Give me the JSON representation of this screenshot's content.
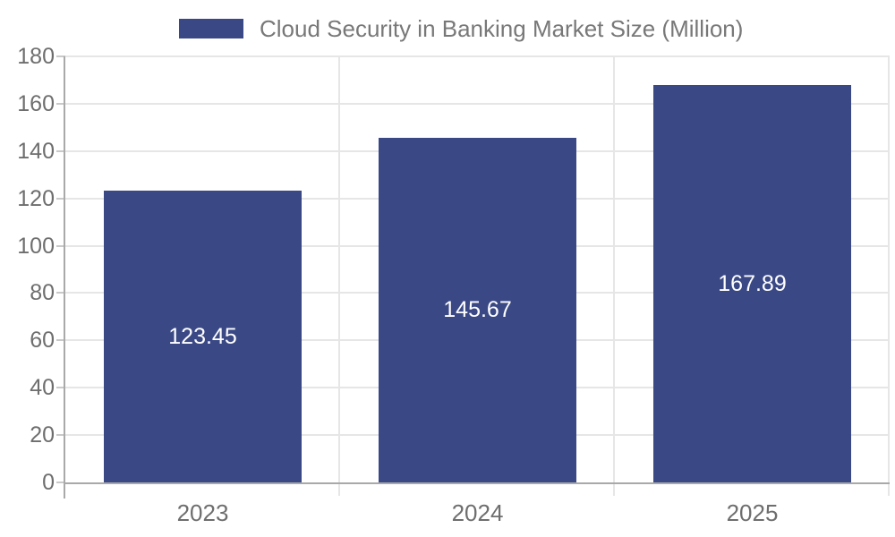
{
  "chart_data": {
    "type": "bar",
    "title": "Cloud Security in Banking Market Size (Million)",
    "legend": [
      "Cloud Security in Banking Market Size (Million)"
    ],
    "legend_position": "top",
    "categories": [
      "2023",
      "2024",
      "2025"
    ],
    "series": [
      {
        "name": "Cloud Security in Banking Market Size (Million)",
        "values": [
          123.45,
          145.67,
          167.89
        ]
      }
    ],
    "value_labels": [
      "123.45",
      "145.67",
      "167.89"
    ],
    "xlabel": "",
    "ylabel": "",
    "ylim": [
      0,
      180
    ],
    "yticks": [
      0,
      20,
      40,
      60,
      80,
      100,
      120,
      140,
      160,
      180
    ],
    "grid": true,
    "colors": {
      "bar": "#3a4985",
      "axis": "#a9a9a9",
      "grid": "#e6e6e6",
      "tick_mark": "#c9c9c9",
      "tick_text": "#6e6e6e",
      "value_text": "#ffffff",
      "legend_text": "#787878",
      "background": "#ffffff"
    }
  }
}
